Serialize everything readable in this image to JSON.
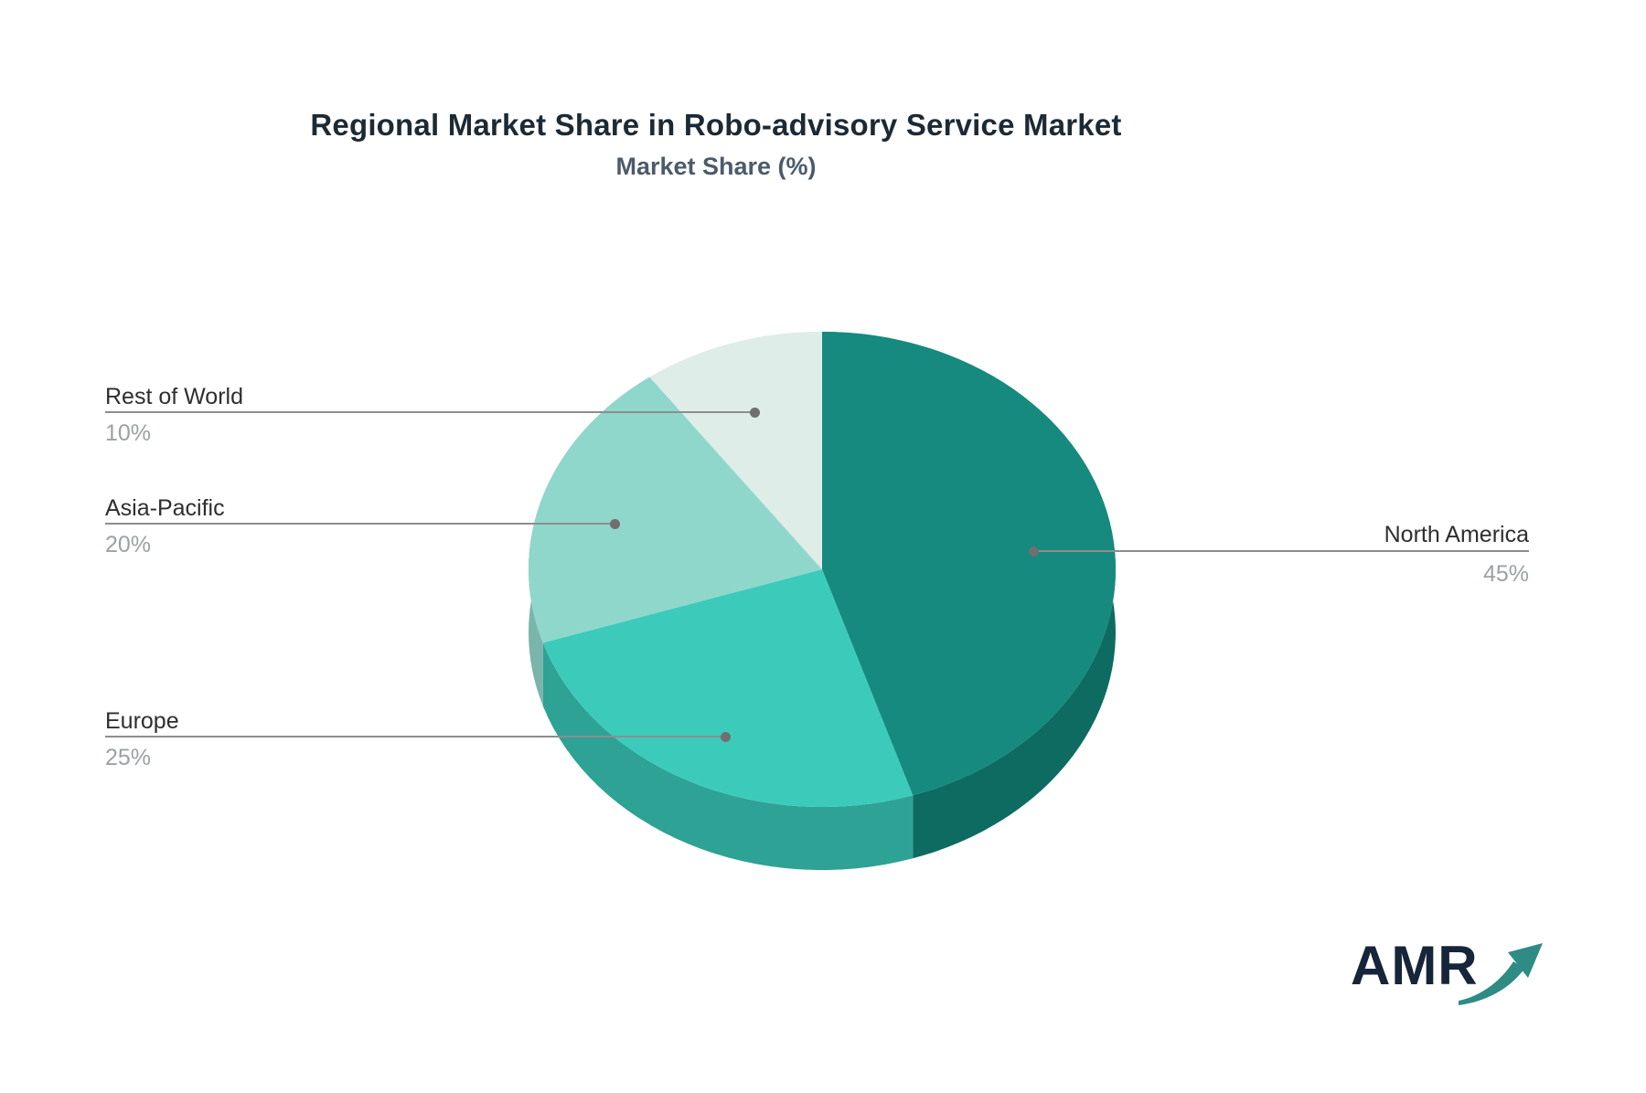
{
  "title": "Regional Market Share in Robo-advisory Service Market",
  "subtitle": "Market Share (%)",
  "chart_data": {
    "type": "pie",
    "style": "3d",
    "title": "Regional Market Share in Robo-advisory Service Market",
    "value_axis_label": "Market Share (%)",
    "categories": [
      "North America",
      "Europe",
      "Asia-Pacific",
      "Rest of World"
    ],
    "values": [
      45,
      25,
      20,
      10
    ],
    "unit": "%",
    "start_angle_deg": 0,
    "direction": "clockwise",
    "slice_colors": [
      "#168A7E",
      "#3CCBBA",
      "#8FD7CB",
      "#DFEDE9"
    ],
    "side_colors": [
      "#0E6B61",
      "#2EA295",
      "#79B5AB",
      "#C2D8D2"
    ],
    "legend_position": "none",
    "grid": false
  },
  "labels": [
    {
      "name": "North America",
      "value": "45%"
    },
    {
      "name": "Europe",
      "value": "25%"
    },
    {
      "name": "Asia-Pacific",
      "value": "20%"
    },
    {
      "name": "Rest of World",
      "value": "10%"
    }
  ],
  "leader": {
    "line_color": "#8d8d8d",
    "dot_color": "#6f6f6f"
  },
  "text_colors": {
    "label": "#2e2e2e",
    "percent": "#9ca1a3",
    "title": "#1c2a35",
    "subtitle": "#4c5b6a"
  },
  "logo": {
    "text": "AMR",
    "text_color": "#16253a",
    "arrow_color": "#2E8C85"
  }
}
